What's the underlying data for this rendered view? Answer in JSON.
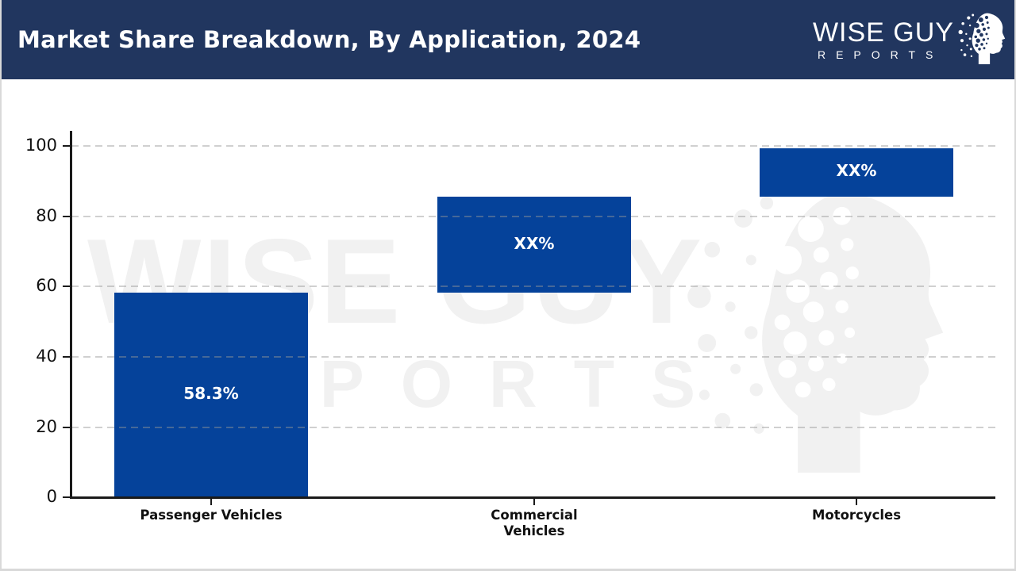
{
  "header": {
    "title": "Market Share Breakdown, By Application, 2024",
    "logo": {
      "wordmark": "WISE GUY",
      "subtext": "REPORTS"
    },
    "colors": {
      "background": "#21365f",
      "text": "#ffffff"
    }
  },
  "watermark": {
    "wordmark": "WISE GUY",
    "subtext": "REPORTS",
    "color": "#f1f1f1"
  },
  "chart_data": {
    "type": "bar",
    "subtype": "stacked-waterfall",
    "title": "Market Share Breakdown, By Application, 2024",
    "categories": [
      [
        "Passenger Vehicles"
      ],
      [
        "Commercial",
        "Vehicles"
      ],
      [
        "Motorcycles"
      ]
    ],
    "segments": [
      {
        "category": "Passenger Vehicles",
        "label": "58.3%",
        "from": 0,
        "to": 58.3
      },
      {
        "category": "Commercial Vehicles",
        "label": "XX%",
        "from": 58.3,
        "to": 85.6
      },
      {
        "category": "Motorcycles",
        "label": "XX%",
        "from": 85.6,
        "to": 99.5
      }
    ],
    "y_ticks": [
      0,
      20,
      40,
      60,
      80,
      100
    ],
    "ylim": [
      0,
      104
    ],
    "grid": true,
    "legend": false,
    "bar_color": "#05429a",
    "bar_label_color": "#ffffff",
    "axis_color": "#1a1a1a",
    "tick_label_color": "#111111",
    "grid_color": "#d9d9d9"
  }
}
